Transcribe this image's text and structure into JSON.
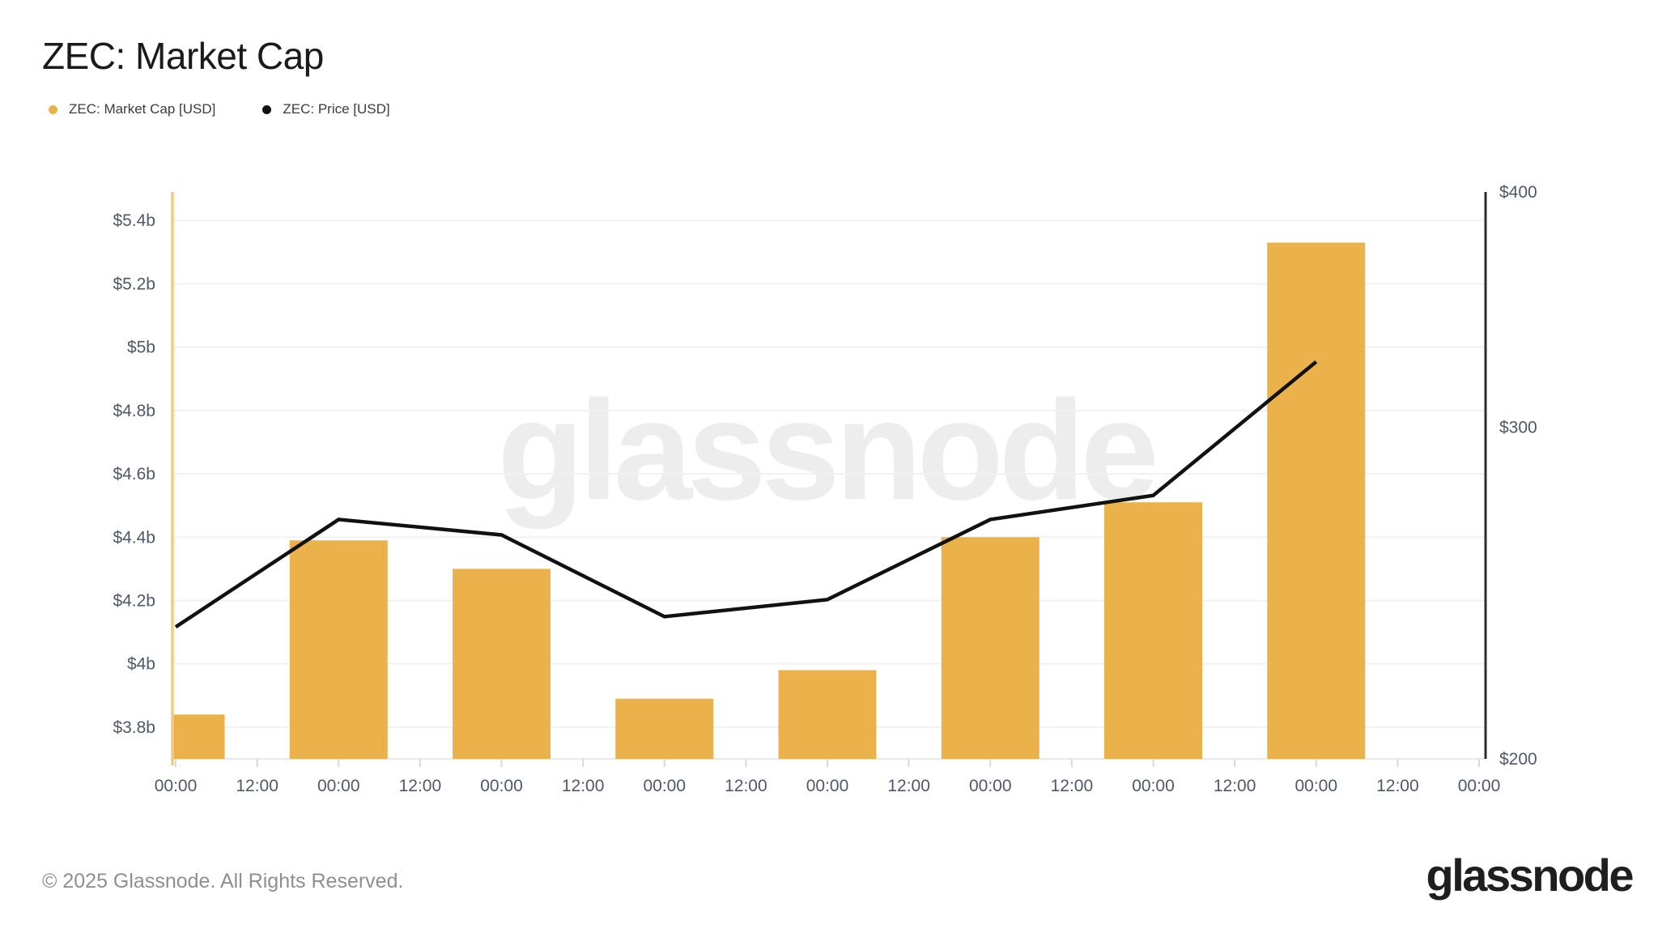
{
  "header": {
    "title": "ZEC: Market Cap"
  },
  "legend": {
    "items": [
      {
        "label": "ZEC: Market Cap [USD]",
        "color": "#EBB24B"
      },
      {
        "label": "ZEC: Price [USD]",
        "color": "#111111"
      }
    ]
  },
  "watermark": {
    "text": "glassnode",
    "color": "#ededee"
  },
  "footer": {
    "copyright": "© 2025 Glassnode. All Rights Reserved.",
    "brand": "glassnode"
  },
  "colors": {
    "bar": "#EBB24B",
    "price_line": "#111111",
    "left_axis_line": "#F3CC7E",
    "right_axis_line": "#2e2e2e",
    "gridline": "#f1f1f2",
    "baseline": "#e9e9e9",
    "tick_mark": "#d9d9d9",
    "tick_text": "#4f5868"
  },
  "chart_data": {
    "type": "bar",
    "title": "ZEC: Market Cap",
    "x_tick_labels": [
      "00:00",
      "12:00",
      "00:00",
      "12:00",
      "00:00",
      "12:00",
      "00:00",
      "12:00",
      "00:00",
      "12:00",
      "00:00",
      "12:00",
      "00:00",
      "12:00",
      "00:00",
      "12:00",
      "00:00"
    ],
    "bar_tick_indices": [
      0,
      2,
      4,
      6,
      8,
      10,
      12,
      14
    ],
    "series": [
      {
        "name": "ZEC: Market Cap [USD]",
        "type": "bar",
        "axis": "left",
        "unit": "USD billions",
        "color": "#EBB24B",
        "values": [
          3.84,
          4.39,
          4.3,
          3.89,
          3.98,
          4.4,
          4.51,
          5.33
        ]
      },
      {
        "name": "ZEC: Price [USD]",
        "type": "line",
        "axis": "right",
        "unit": "USD",
        "color": "#111111",
        "values": [
          235,
          268,
          263,
          238,
          243,
          268,
          276,
          325
        ]
      }
    ],
    "left_axis": {
      "scale": "linear",
      "range": [
        3.7,
        5.49
      ],
      "tick_values": [
        3.8,
        4.0,
        4.2,
        4.4,
        4.6,
        4.8,
        5.0,
        5.2,
        5.4
      ],
      "tick_labels": [
        "$3.8b",
        "$4b",
        "$4.2b",
        "$4.4b",
        "$4.6b",
        "$4.8b",
        "$5b",
        "$5.2b",
        "$5.4b"
      ]
    },
    "right_axis": {
      "scale": "log",
      "range": [
        200,
        400
      ],
      "tick_values": [
        200,
        300,
        400
      ],
      "tick_labels": [
        "$200",
        "$300",
        "$400"
      ]
    },
    "grid": "horizontal",
    "legend_position": "top-left"
  }
}
